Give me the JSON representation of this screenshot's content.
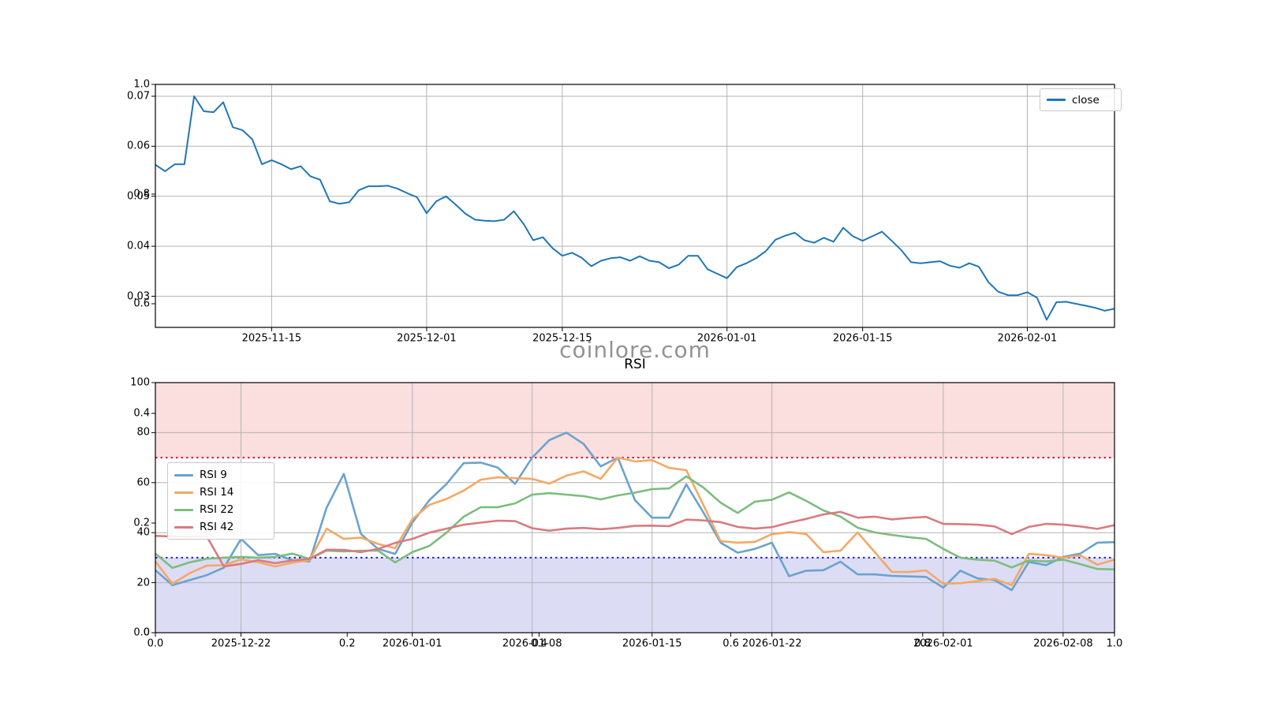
{
  "watermark": "coinlore.com",
  "colors": {
    "close_line": "#1f77b4",
    "rsi9_line": "#6ba3cd",
    "rsi14_line": "#f5a864",
    "rsi22_line": "#7cbd7d",
    "rsi42_line": "#d97b80",
    "overbought_band": "#fbdede",
    "oversold_band": "#dddcf5",
    "overbought_dotted": "#e01030",
    "oversold_dotted": "#2020dd",
    "gridline": "#b3b3b3",
    "watermark_gray": "#7b7b7b"
  },
  "overlay_axis": {
    "xtick_labels": [
      "0.0",
      "0.2",
      "0.4",
      "0.6",
      "0.8",
      "1.0"
    ],
    "ytick_labels": [
      "0.0",
      "0.2",
      "0.4",
      "0.6",
      "0.8",
      "1.0"
    ]
  },
  "chart_data": [
    {
      "type": "line",
      "title": "",
      "legend_position": "upper right",
      "grid": true,
      "x_start_date": "2025-11-03",
      "x_end_date": "2026-02-10",
      "ylim": [
        0.0238,
        0.0724
      ],
      "yticks": [
        0.07,
        0.06,
        0.05,
        0.04,
        0.03
      ],
      "ytick_labels": [
        "0.07",
        "0.06",
        "0.05",
        "0.04",
        "0.03"
      ],
      "xticks": [
        {
          "label": "2025-11-15",
          "day": 12
        },
        {
          "label": "2025-12-01",
          "day": 28
        },
        {
          "label": "2025-12-15",
          "day": 42
        },
        {
          "label": "2026-01-01",
          "day": 59
        },
        {
          "label": "2026-01-15",
          "day": 73
        },
        {
          "label": "2026-02-01",
          "day": 90
        }
      ],
      "series": [
        {
          "name": "close",
          "color": "#1f77b4",
          "values": [
            0.0563,
            0.055,
            0.0564,
            0.0564,
            0.07,
            0.067,
            0.0668,
            0.0688,
            0.0638,
            0.0632,
            0.0614,
            0.0564,
            0.0572,
            0.0564,
            0.0554,
            0.056,
            0.054,
            0.0533,
            0.049,
            0.0485,
            0.0488,
            0.0512,
            0.052,
            0.052,
            0.0521,
            0.0515,
            0.0506,
            0.0498,
            0.0466,
            0.049,
            0.05,
            0.0483,
            0.0465,
            0.0453,
            0.0451,
            0.045,
            0.0453,
            0.047,
            0.0445,
            0.0412,
            0.0418,
            0.0396,
            0.0381,
            0.0387,
            0.0377,
            0.036,
            0.0371,
            0.0376,
            0.0378,
            0.0371,
            0.038,
            0.0371,
            0.0368,
            0.0356,
            0.0363,
            0.0381,
            0.0381,
            0.0354,
            0.0345,
            0.0336,
            0.0358,
            0.0366,
            0.0376,
            0.039,
            0.0413,
            0.0421,
            0.0427,
            0.0412,
            0.0407,
            0.0417,
            0.0409,
            0.0437,
            0.042,
            0.0411,
            0.042,
            0.0429,
            0.0411,
            0.0392,
            0.0368,
            0.0366,
            0.0368,
            0.037,
            0.0361,
            0.0357,
            0.0366,
            0.0359,
            0.0328,
            0.0309,
            0.0302,
            0.0302,
            0.0308,
            0.0297,
            0.0253,
            0.0288,
            0.0289,
            0.0285,
            0.0281,
            0.0277,
            0.0271,
            0.0275
          ]
        }
      ]
    },
    {
      "type": "line",
      "title": "RSI",
      "legend_position": "center left",
      "grid": true,
      "x_start_date": "2025-12-17",
      "x_end_date": "2026-02-11",
      "ylim": [
        0,
        100
      ],
      "yticks": [
        100,
        80,
        60,
        40,
        20,
        0
      ],
      "ytick_labels": [
        "100",
        "80",
        "60",
        "40",
        "20",
        "0"
      ],
      "overbought_level": 70,
      "oversold_level": 30,
      "bands": [
        {
          "from": 70,
          "to": 100,
          "color": "#fbdede"
        },
        {
          "from": 0,
          "to": 30,
          "color": "#dddcf5"
        }
      ],
      "xticks": [
        {
          "label": "2025-12-22",
          "day": 5
        },
        {
          "label": "2026-01-01",
          "day": 15
        },
        {
          "label": "2026-01-08",
          "day": 22
        },
        {
          "label": "2026-01-15",
          "day": 29
        },
        {
          "label": "2026-01-22",
          "day": 36
        },
        {
          "label": "2026-02-01",
          "day": 46
        },
        {
          "label": "2026-02-08",
          "day": 53
        }
      ],
      "series": [
        {
          "name": "RSI 9",
          "color": "#6ba3cd",
          "values": [
            25,
            19,
            21,
            23,
            26,
            37.5,
            31,
            31.5,
            29,
            28.5,
            50,
            63.5,
            39.5,
            33.5,
            31.5,
            44,
            53,
            59.5,
            67.8,
            68,
            66,
            59.5,
            70,
            77,
            80,
            75.5,
            66.5,
            70,
            53,
            46,
            46,
            59.3,
            48,
            36,
            32,
            33.5,
            36,
            22.6,
            24.8,
            25,
            28.4,
            23.3,
            23.3,
            22.7,
            22.5,
            22.3,
            18,
            24.8,
            21.7,
            21,
            17,
            28.3,
            27,
            30.3,
            31.6,
            36,
            36.2
          ]
        },
        {
          "name": "RSI 14",
          "color": "#f5a864",
          "values": [
            28.5,
            19.6,
            23.8,
            26.8,
            27,
            29.3,
            28.2,
            26.5,
            28,
            29,
            41.6,
            37.5,
            38,
            35.5,
            33.8,
            45.4,
            51.1,
            53.5,
            56.8,
            61.2,
            62.1,
            61.8,
            61.5,
            59.6,
            62.8,
            64.5,
            61.5,
            70,
            68.5,
            69,
            65.9,
            65,
            51,
            36.6,
            36,
            36.3,
            39.4,
            40.2,
            39.5,
            32.2,
            32.8,
            40.1,
            32.2,
            24.3,
            24.3,
            24.9,
            19.6,
            19.8,
            20.6,
            21.5,
            19,
            31.5,
            31,
            30,
            30.9,
            27.2,
            29.2
          ]
        },
        {
          "name": "RSI 22",
          "color": "#7cbd7d",
          "values": [
            31.6,
            25.9,
            28.1,
            29.6,
            30,
            30.3,
            30,
            30.3,
            31.6,
            29.5,
            32.8,
            32.5,
            32.8,
            32.8,
            28.1,
            32.2,
            34.7,
            40,
            46.4,
            50.2,
            50.2,
            51.7,
            55.2,
            55.8,
            55.2,
            54.6,
            53.3,
            54.9,
            56,
            57.4,
            57.7,
            62.5,
            58,
            52,
            47.9,
            52.4,
            53.2,
            56.1,
            52.7,
            48.9,
            46.4,
            42,
            40.1,
            39.1,
            38.2,
            37.5,
            33.5,
            30,
            29.2,
            28.8,
            26.1,
            28.9,
            28.5,
            29.2,
            27.4,
            25.5,
            25.3
          ]
        },
        {
          "name": "RSI 42",
          "color": "#d97b80",
          "values": [
            38.7,
            38.5,
            38.3,
            38.5,
            26.5,
            27.5,
            29,
            27.8,
            28.9,
            29.5,
            33.2,
            33.1,
            32.2,
            33.5,
            35.9,
            37.5,
            40,
            41.6,
            43.2,
            44,
            44.8,
            44.6,
            41.8,
            40.8,
            41.6,
            41.9,
            41.4,
            41.9,
            42.7,
            42.8,
            42.6,
            45.2,
            44.9,
            44.2,
            42.3,
            41.6,
            42.2,
            44,
            45.5,
            47.3,
            48.3,
            46,
            46.4,
            45.3,
            45.9,
            46.3,
            43.5,
            43.4,
            43.2,
            42.5,
            39.4,
            42.3,
            43.5,
            43.2,
            42.5,
            41.5,
            43
          ]
        }
      ]
    }
  ]
}
